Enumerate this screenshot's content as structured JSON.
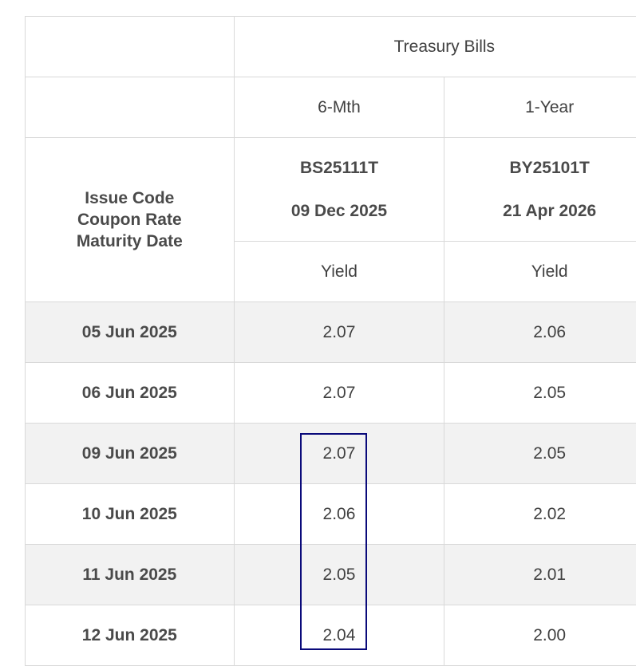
{
  "table": {
    "group_header": "Treasury Bills",
    "tenors": [
      "6-Mth",
      "1-Year"
    ],
    "row_header_lines": [
      "Issue Code",
      "Coupon Rate",
      "Maturity Date"
    ],
    "issues": [
      {
        "code": "BS25111T",
        "maturity": "09 Dec 2025",
        "measure": "Yield"
      },
      {
        "code": "BY25101T",
        "maturity": "21 Apr 2026",
        "measure": "Yield"
      }
    ],
    "rows": [
      {
        "date": "05 Jun 2025",
        "values": [
          "2.07",
          "2.06"
        ]
      },
      {
        "date": "06 Jun 2025",
        "values": [
          "2.07",
          "2.05"
        ]
      },
      {
        "date": "09 Jun 2025",
        "values": [
          "2.07",
          "2.05"
        ]
      },
      {
        "date": "10 Jun 2025",
        "values": [
          "2.06",
          "2.02"
        ]
      },
      {
        "date": "11 Jun 2025",
        "values": [
          "2.05",
          "2.01"
        ]
      },
      {
        "date": "12 Jun 2025",
        "values": [
          "2.04",
          "2.00"
        ]
      }
    ]
  },
  "colors": {
    "border": "#d9d9d9",
    "shaded_row": "#f2f2f2",
    "highlight_border": "#0a0a7a"
  }
}
